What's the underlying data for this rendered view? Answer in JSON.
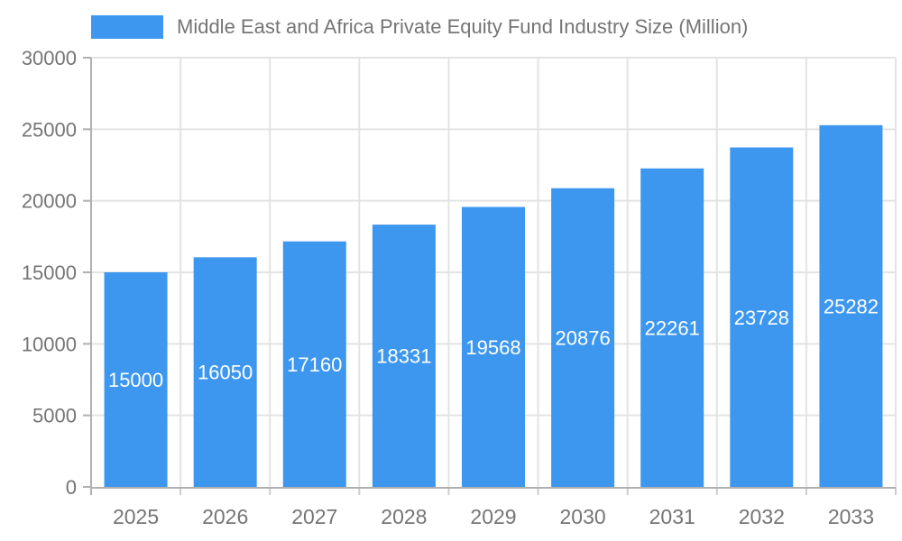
{
  "chart_data": {
    "type": "bar",
    "title": "Middle East and Africa Private Equity Fund Industry Size (Million)",
    "categories": [
      "2025",
      "2026",
      "2027",
      "2028",
      "2029",
      "2030",
      "2031",
      "2032",
      "2033"
    ],
    "values": [
      15000,
      16050,
      17160,
      18331,
      19568,
      20876,
      22261,
      23728,
      25282
    ],
    "xlabel": "",
    "ylabel": "",
    "ylim": [
      0,
      30000
    ],
    "yticks": [
      0,
      5000,
      10000,
      15000,
      20000,
      25000,
      30000
    ],
    "grid": true,
    "legend_position": "top-left",
    "value_labels": "inside-center",
    "colors": {
      "bar": "#3D97EE",
      "value_label": "#FFFFFF",
      "axis_text": "#757575",
      "gridline": "#E3E3E3",
      "axis_line": "#B0B0B0",
      "background": "#FFFFFF"
    }
  }
}
